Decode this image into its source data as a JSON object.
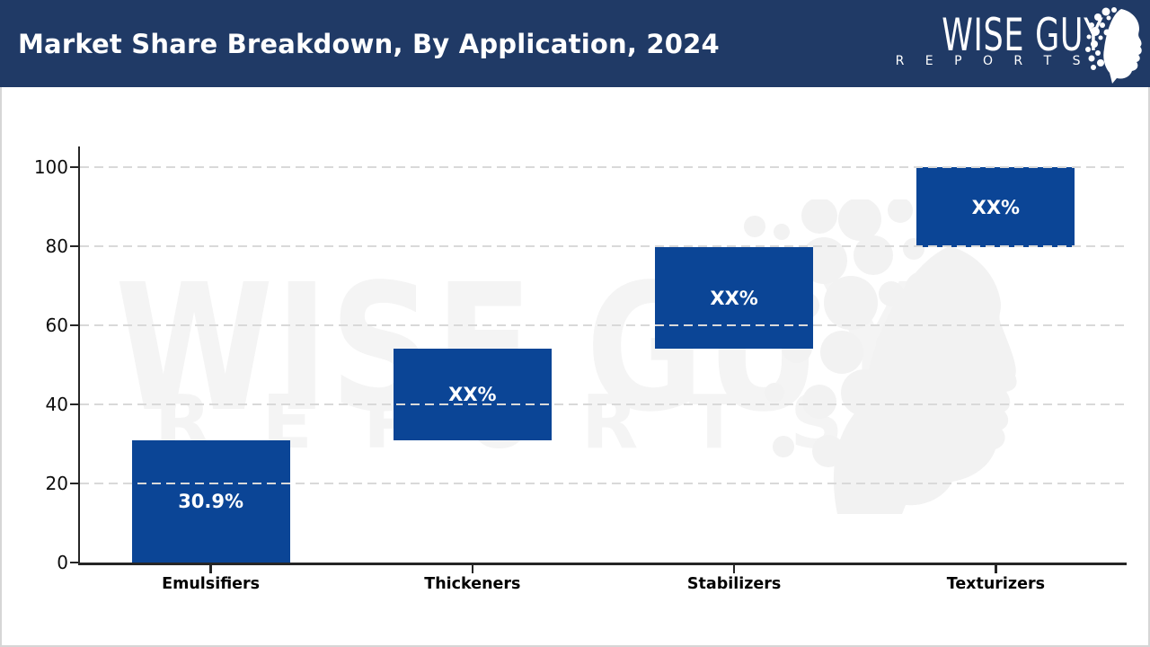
{
  "header": {
    "title": "Market Share Breakdown, By Application, 2024",
    "bg_color": "#203A66",
    "logo": {
      "line1": "WISE GUY",
      "line2": "R E P O R T S",
      "face_icon": "dotted-face-profile"
    }
  },
  "watermark": {
    "line1": "WISE GUY",
    "line2": "R E P O R T S",
    "face_icon": "dotted-face-profile",
    "color": "#f4f4f4"
  },
  "chart_data": {
    "type": "bar",
    "subtype": "waterfall",
    "title": "Market Share Breakdown, By Application, 2024",
    "categories": [
      "Emulsifiers",
      "Thickeners",
      "Stabilizers",
      "Texturizers"
    ],
    "series": [
      {
        "name": "Market Share",
        "segments": [
          {
            "category": "Emulsifiers",
            "start": 0,
            "end": 30.9,
            "label": "30.9%"
          },
          {
            "category": "Thickeners",
            "start": 30.9,
            "end": 54,
            "label": "XX%"
          },
          {
            "category": "Stabilizers",
            "start": 54,
            "end": 79.7,
            "label": "XX%"
          },
          {
            "category": "Texturizers",
            "start": 79.7,
            "end": 100,
            "label": "XX%"
          }
        ]
      }
    ],
    "xlabel": "",
    "ylabel": "",
    "ylim": [
      0,
      100
    ],
    "yticks": [
      0,
      20,
      40,
      60,
      80,
      100
    ],
    "grid": "horizontal-dashed",
    "legend": "none",
    "colors": {
      "bar": "#0B4596",
      "bar_label": "#FFFFFF",
      "grid": "#D9D9D9",
      "axis": "#262626",
      "tick_label": "#0D0D0D"
    }
  }
}
